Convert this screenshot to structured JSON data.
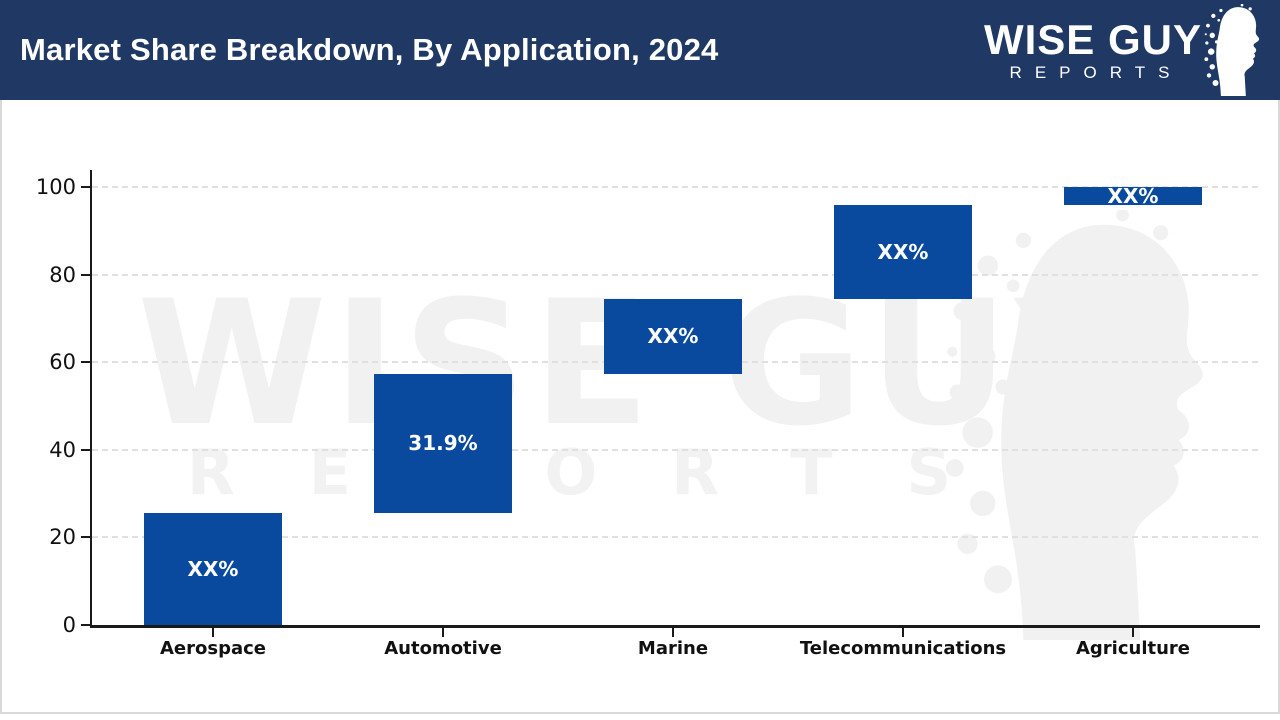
{
  "header": {
    "title": "Market Share Breakdown, By Application, 2024",
    "bg_color": "#1f3864",
    "logo": {
      "line1": "WISE GUY",
      "line2": "REPORTS"
    }
  },
  "watermark": {
    "line1": "WISE GUY",
    "line2": "REPORTS"
  },
  "chart_data": {
    "type": "bar",
    "subtype": "waterfall",
    "title": "Market Share Breakdown, By Application, 2024",
    "categories": [
      "Aerospace",
      "Automotive",
      "Marine",
      "Telecommunications",
      "Agriculture"
    ],
    "bars": [
      {
        "category": "Aerospace",
        "start": 0,
        "end": 25.5,
        "label": "XX%"
      },
      {
        "category": "Automotive",
        "start": 25.5,
        "end": 57.4,
        "label": "31.9%"
      },
      {
        "category": "Marine",
        "start": 57.4,
        "end": 74.5,
        "label": "XX%"
      },
      {
        "category": "Telecommunications",
        "start": 74.5,
        "end": 95.9,
        "label": "XX%"
      },
      {
        "category": "Agriculture",
        "start": 95.9,
        "end": 100,
        "label": "XX%"
      }
    ],
    "yticks": [
      0,
      20,
      40,
      60,
      80,
      100
    ],
    "ylim": [
      0,
      104
    ],
    "xlabel": "",
    "ylabel": "",
    "grid": "horizontal-dashed",
    "legend": "none",
    "bar_color": "#0a4a9e",
    "bar_label_color": "#ffffff",
    "gridline_color": "#e0e0e0",
    "axis_color": "#1a1a1a"
  }
}
